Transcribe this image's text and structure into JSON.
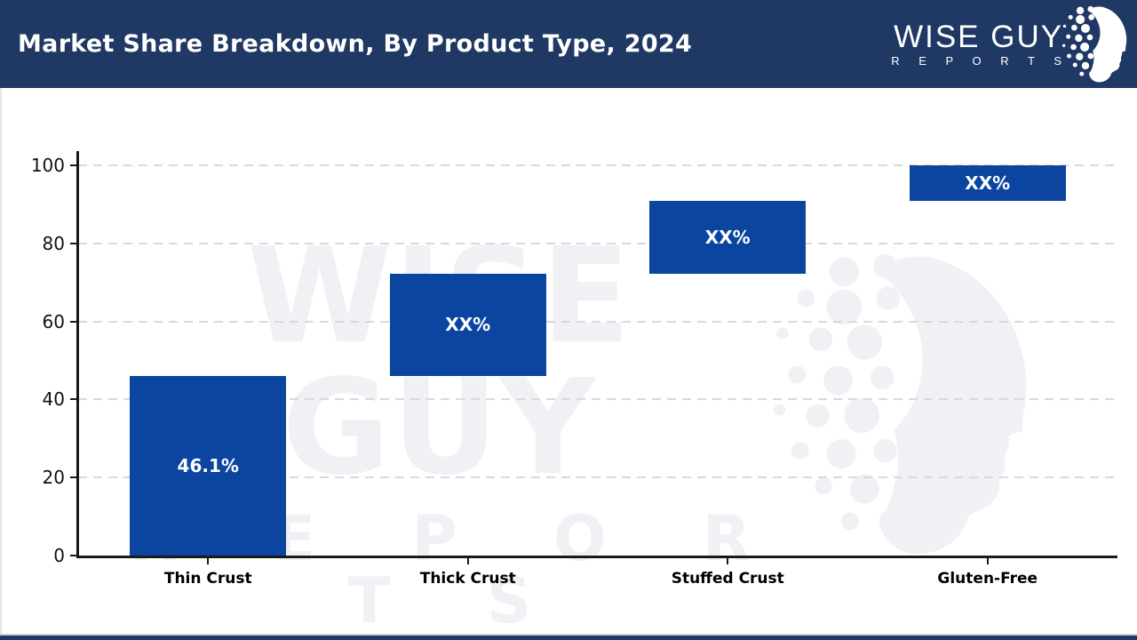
{
  "header": {
    "title": "Market Share Breakdown, By Product Type, 2024",
    "logo": {
      "wordmark": "WISE GUY",
      "subtext": "R E P O R T S"
    }
  },
  "watermark": {
    "line1": "WISE GUY",
    "line2": "R E P O R T S"
  },
  "colors": {
    "header_bg": "#1f3864",
    "bar_fill": "#0b45a0",
    "bar_label": "#ffffff",
    "gridline": "#d9d9d9",
    "axis": "#1a1a1a",
    "tick_label": "#111111",
    "watermark": "#f0f1f4",
    "footer_bar": "#1f3864"
  },
  "chart_data": {
    "type": "bar",
    "variant": "waterfall",
    "title": "Market Share Breakdown, By Product Type, 2024",
    "xlabel": "",
    "ylabel": "",
    "ylim": [
      0,
      100
    ],
    "yticks": [
      0,
      20,
      40,
      60,
      80,
      100
    ],
    "grid": true,
    "legend": false,
    "categories": [
      "Thin Crust",
      "Thick Crust",
      "Stuffed Crust",
      "Gluten-Free"
    ],
    "segments": [
      {
        "category": "Thin Crust",
        "start": 0,
        "end": 46.1,
        "label": "46.1%"
      },
      {
        "category": "Thick Crust",
        "start": 46.1,
        "end": 72.2,
        "label": "XX%"
      },
      {
        "category": "Stuffed Crust",
        "start": 72.2,
        "end": 90.9,
        "label": "XX%"
      },
      {
        "category": "Gluten-Free",
        "start": 90.9,
        "end": 100,
        "label": "XX%"
      }
    ]
  }
}
